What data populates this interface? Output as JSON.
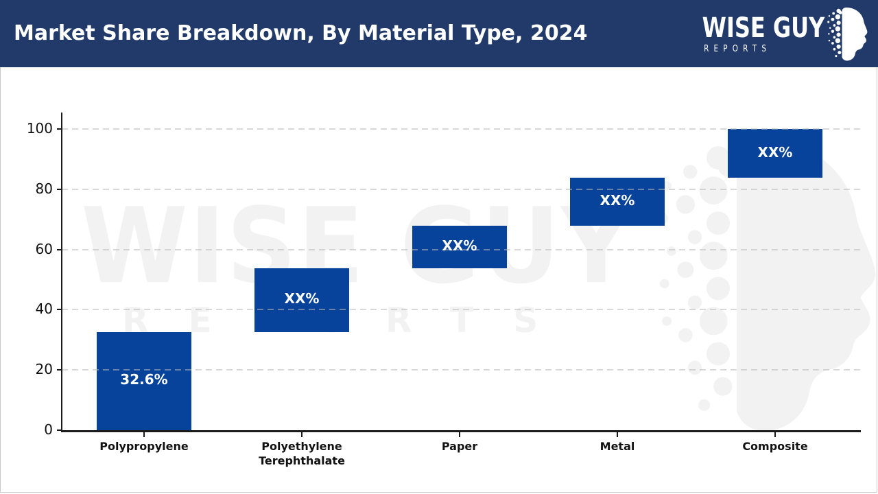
{
  "header": {
    "title": "Market Share Breakdown, By Material Type, 2024",
    "bg_color": "#213a69",
    "logo": {
      "line1": "WISE GUY",
      "line2": "REPORTS"
    }
  },
  "watermark": {
    "line1": "WISE GUY",
    "line2": "REPORTS"
  },
  "chart_data": {
    "type": "bar",
    "variant": "waterfall",
    "title": "Market Share Breakdown, By Material Type, 2024",
    "categories": [
      "Polypropylene",
      "Polyethylene Terephthalate",
      "Paper",
      "Metal",
      "Composite"
    ],
    "segments": [
      {
        "category": "Polypropylene",
        "start": 0,
        "end": 32.6,
        "label": "32.6%"
      },
      {
        "category": "Polyethylene Terephthalate",
        "start": 32.6,
        "end": 53.8,
        "label": "XX%"
      },
      {
        "category": "Paper",
        "start": 53.8,
        "end": 67.8,
        "label": "XX%"
      },
      {
        "category": "Metal",
        "start": 67.8,
        "end": 83.8,
        "label": "XX%"
      },
      {
        "category": "Composite",
        "start": 83.8,
        "end": 100,
        "label": "XX%"
      }
    ],
    "xlabel": "",
    "ylabel": "",
    "ylim": [
      0,
      100
    ],
    "yticks": [
      0,
      20,
      40,
      60,
      80,
      100
    ],
    "grid": {
      "show": true,
      "orientation": "horizontal",
      "style": "dashed"
    },
    "legend": {
      "show": false
    },
    "bar_color": "#07439a",
    "bar_label_color": "#ffffff",
    "axis_color": "#1a1a1a"
  }
}
